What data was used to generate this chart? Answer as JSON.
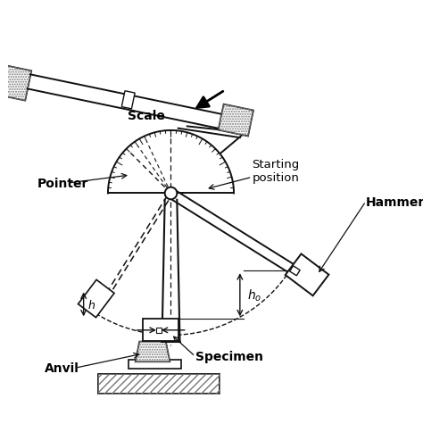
{
  "bg_color": "#ffffff",
  "line_color": "#111111",
  "gray_color": "#777777",
  "labels": {
    "scale": "Scale",
    "pointer": "Pointer",
    "starting_position": "Starting\nposition",
    "hammer": "Hammer",
    "h0": "$h_o$",
    "h": "$h$",
    "anvil": "Anvil",
    "specimen": "Specimen"
  },
  "pivot": [
    0.4,
    0.555
  ],
  "scale_r": 0.155,
  "figsize": [
    4.74,
    4.85
  ],
  "dpi": 100
}
